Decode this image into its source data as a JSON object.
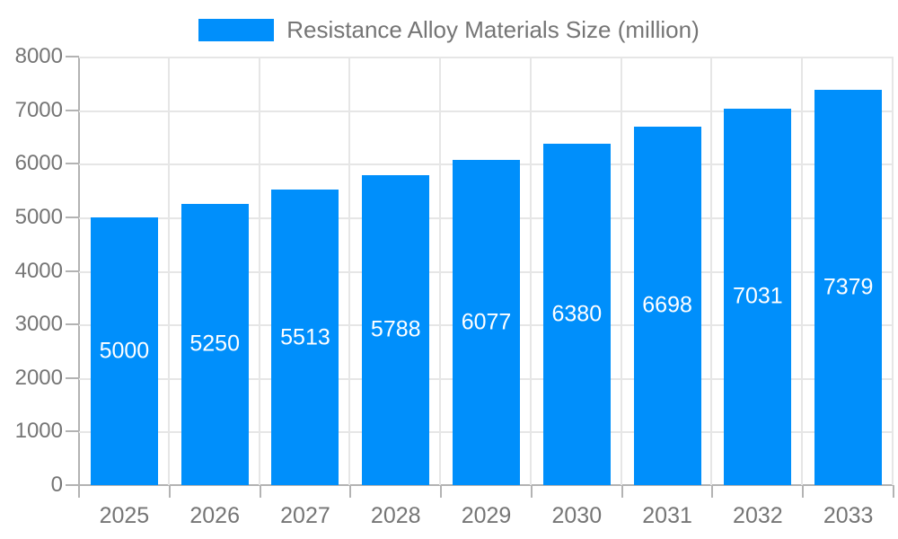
{
  "legend": {
    "label": "Resistance Alloy Materials Size (million)"
  },
  "chart_data": {
    "type": "bar",
    "title": "Resistance Alloy Materials Size (million)",
    "categories": [
      "2025",
      "2026",
      "2027",
      "2028",
      "2029",
      "2030",
      "2031",
      "2032",
      "2033"
    ],
    "series": [
      {
        "name": "Resistance Alloy Materials Size (million)",
        "values": [
          5000,
          5250,
          5513,
          5788,
          6077,
          6380,
          6698,
          7031,
          7379
        ]
      }
    ],
    "bar_value_labels": [
      "5000",
      "5250",
      "5513",
      "5788",
      "6077",
      "6380",
      "6698",
      "7031",
      "7379"
    ],
    "xlabel": "",
    "ylabel": "",
    "ylim": [
      0,
      8000
    ],
    "yticks": [
      0,
      1000,
      2000,
      3000,
      4000,
      5000,
      6000,
      7000,
      8000
    ],
    "grid": true,
    "legend_position": "top"
  },
  "colors": {
    "bar": "#008FFB",
    "bar_label": "#ffffff",
    "axis_text": "#757575",
    "grid_line": "#e6e6e6",
    "axis_line": "#b3b3b3",
    "background": "#ffffff"
  }
}
